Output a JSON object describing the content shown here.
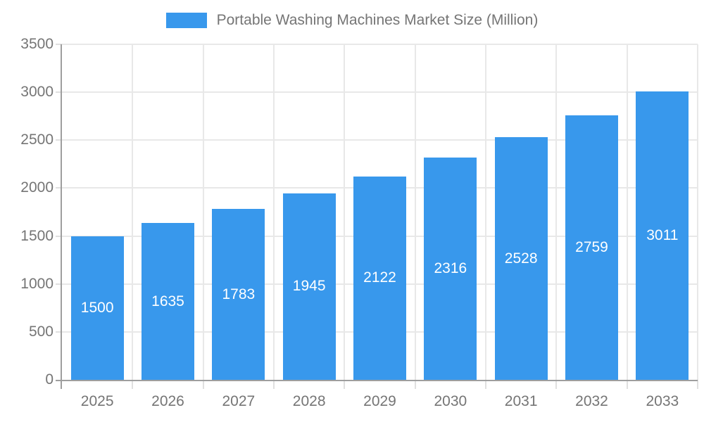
{
  "chart_data": {
    "type": "bar",
    "title": "Portable Washing Machines Market Size (Million)",
    "legend": {
      "position": "top",
      "entries": [
        "Portable Washing Machines Market Size (Million)"
      ]
    },
    "categories": [
      "2025",
      "2026",
      "2027",
      "2028",
      "2029",
      "2030",
      "2031",
      "2032",
      "2033"
    ],
    "series": [
      {
        "name": "Portable Washing Machines Market Size (Million)",
        "values": [
          1500,
          1635,
          1783,
          1945,
          2122,
          2316,
          2528,
          2759,
          3011
        ]
      }
    ],
    "xlabel": "",
    "ylabel": "",
    "ylim": [
      0,
      3500
    ],
    "ytick_step": 500,
    "ytick_labels": [
      "0",
      "500",
      "1000",
      "1500",
      "2000",
      "2500",
      "3000",
      "3500"
    ],
    "grid": true,
    "bar_value_labels": "inside-center",
    "colors": {
      "bar": "#3898EC",
      "bar_value_label": "#FFFFFF",
      "grid": "#E8E8E8",
      "axis_line": "#9E9E9E",
      "tick": "#E0E0E0",
      "tick_label": "#757575",
      "legend_text": "#757575",
      "background": "#FFFFFF"
    }
  }
}
